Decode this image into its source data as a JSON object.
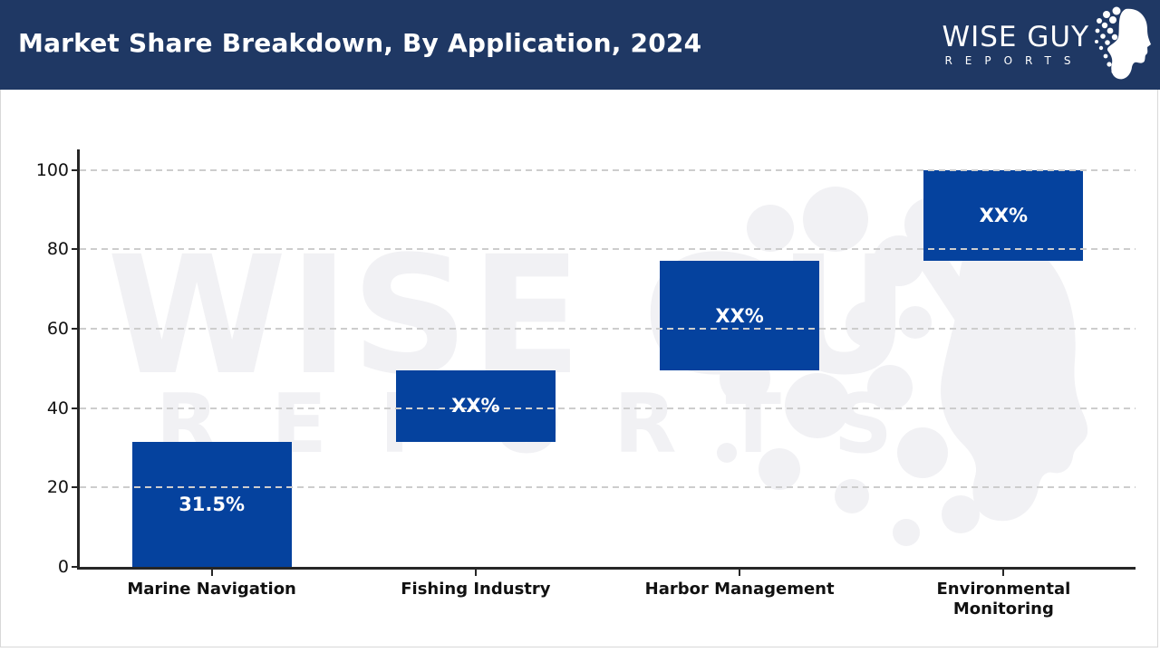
{
  "header": {
    "title": "Market Share Breakdown, By Application, 2024",
    "logo": {
      "name": "WISE GUY",
      "sub": "REPORTS"
    }
  },
  "watermark": {
    "name": "WISE GUY",
    "sub": "REPORTS"
  },
  "colors": {
    "header_bg": "#1f3864",
    "bar": "#05429e",
    "bar_label": "#ffffff",
    "axis": "#262626",
    "grid": "#cdcdcd",
    "watermark": "#f1f1f4",
    "card_border": "#d8d8d8"
  },
  "chart_data": {
    "type": "bar",
    "subtype": "floating-waterfall",
    "title": "Market Share Breakdown, By Application, 2024",
    "categories": [
      "Marine Navigation",
      "Fishing Industry",
      "Harbor Management",
      "Environmental Monitoring"
    ],
    "segments": [
      {
        "category": "Marine Navigation",
        "start": 0,
        "end": 31.5,
        "label": "31.5%"
      },
      {
        "category": "Fishing Industry",
        "start": 31.5,
        "end": 49.5,
        "label": "XX%"
      },
      {
        "category": "Harbor Management",
        "start": 49.5,
        "end": 77,
        "label": "XX%"
      },
      {
        "category": "Environmental Monitoring",
        "start": 77,
        "end": 100,
        "label": "XX%"
      }
    ],
    "xlabel": "",
    "ylabel": "",
    "ylim": [
      0,
      100
    ],
    "yticks": [
      0,
      20,
      40,
      60,
      80,
      100
    ],
    "grid": "horizontal-dashed",
    "legend": "none"
  }
}
